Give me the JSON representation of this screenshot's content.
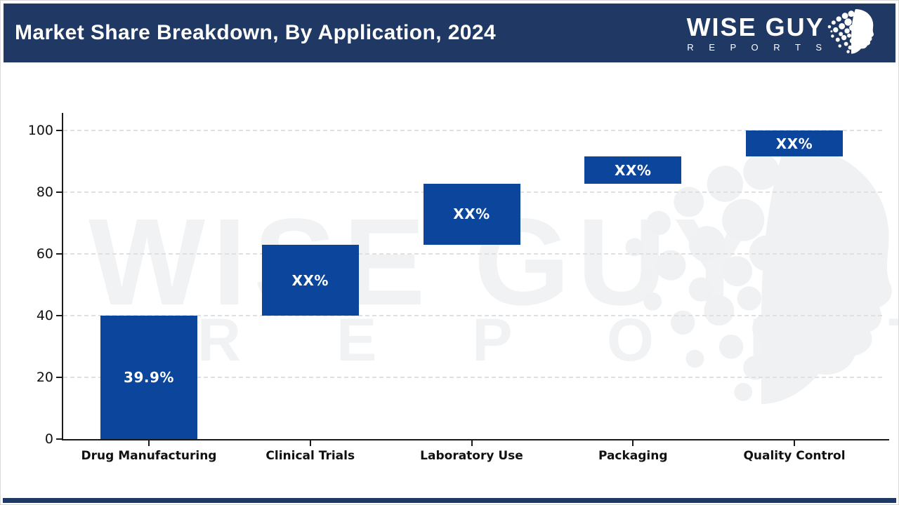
{
  "header": {
    "title": "Market Share Breakdown, By Application, 2024",
    "logo": {
      "line1": "WISE GUY",
      "line2": "R E P O R T S"
    }
  },
  "watermark": {
    "line1": "WISE GUY",
    "line2": "R E P O R T S"
  },
  "colors": {
    "header_bg": "#1f3864",
    "footer_bg": "#1f3864",
    "bar": "#0c459c",
    "bar_label": "#ffffff",
    "gridline": "#e0e0e0",
    "axis": "#1a1a1a",
    "watermark": "#f1f2f4"
  },
  "chart_data": {
    "type": "bar",
    "subtype": "waterfall",
    "title": "Market Share Breakdown, By Application, 2024",
    "categories": [
      "Drug Manufacturing",
      "Clinical Trials",
      "Laboratory Use",
      "Packaging",
      "Quality Control"
    ],
    "segments": [
      {
        "category": "Drug Manufacturing",
        "start": 0,
        "end": 39.9,
        "label": "39.9%"
      },
      {
        "category": "Clinical Trials",
        "start": 39.9,
        "end": 63,
        "label": "XX%"
      },
      {
        "category": "Laboratory Use",
        "start": 63,
        "end": 82.7,
        "label": "XX%"
      },
      {
        "category": "Packaging",
        "start": 82.7,
        "end": 91.5,
        "label": "XX%"
      },
      {
        "category": "Quality Control",
        "start": 91.5,
        "end": 100,
        "label": "XX%"
      }
    ],
    "y_ticks": [
      0,
      20,
      40,
      60,
      80,
      100
    ],
    "ylim": [
      0,
      107
    ],
    "xlabel": "",
    "ylabel": "",
    "grid": "horizontal-dashed",
    "legend": "none"
  }
}
